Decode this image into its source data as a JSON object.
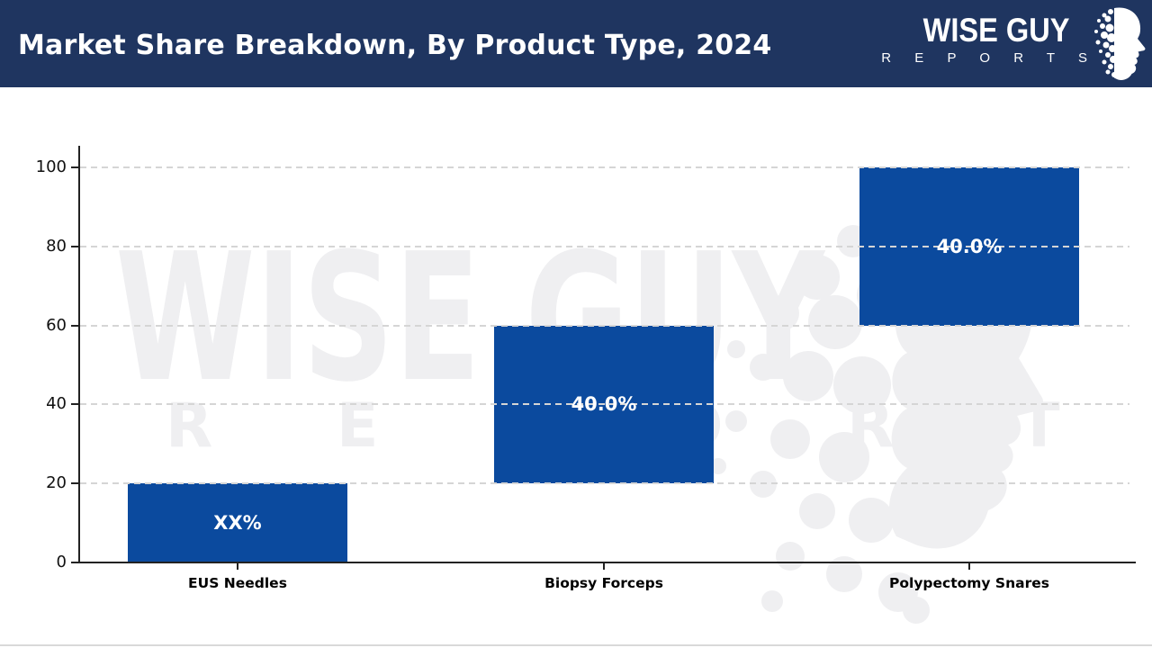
{
  "header": {
    "title": "Market Share Breakdown, By Product Type, 2024",
    "bg_color": "#1f3560",
    "logo": {
      "line1": "WISE GUY",
      "line2": "R E P O R T S",
      "face_icon": "dotted-head-profile"
    }
  },
  "watermark": {
    "line1": "WISE GUY",
    "line2": "R E P O R T S",
    "color": "#efeff1"
  },
  "chart_data": {
    "type": "bar",
    "subtype": "waterfall-segments",
    "title": "Market Share Breakdown, By Product Type, 2024",
    "categories": [
      "EUS Needles",
      "Biopsy Forceps",
      "Polypectomy Snares"
    ],
    "series": [
      {
        "name": "Market Share",
        "segments": [
          {
            "category": "EUS Needles",
            "start": 0,
            "end": 20,
            "label": "XX%"
          },
          {
            "category": "Biopsy Forceps",
            "start": 20,
            "end": 60,
            "label": "40.0%"
          },
          {
            "category": "Polypectomy Snares",
            "start": 60,
            "end": 100,
            "label": "40.0%"
          }
        ]
      }
    ],
    "xlabel": "",
    "ylabel": "",
    "yticks": [
      0,
      20,
      40,
      60,
      80,
      100
    ],
    "ylim": [
      0,
      105
    ],
    "grid": "horizontal-dashed",
    "legend": "none",
    "bar_color": "#0b4a9e",
    "bar_label_color": "#ffffff"
  }
}
